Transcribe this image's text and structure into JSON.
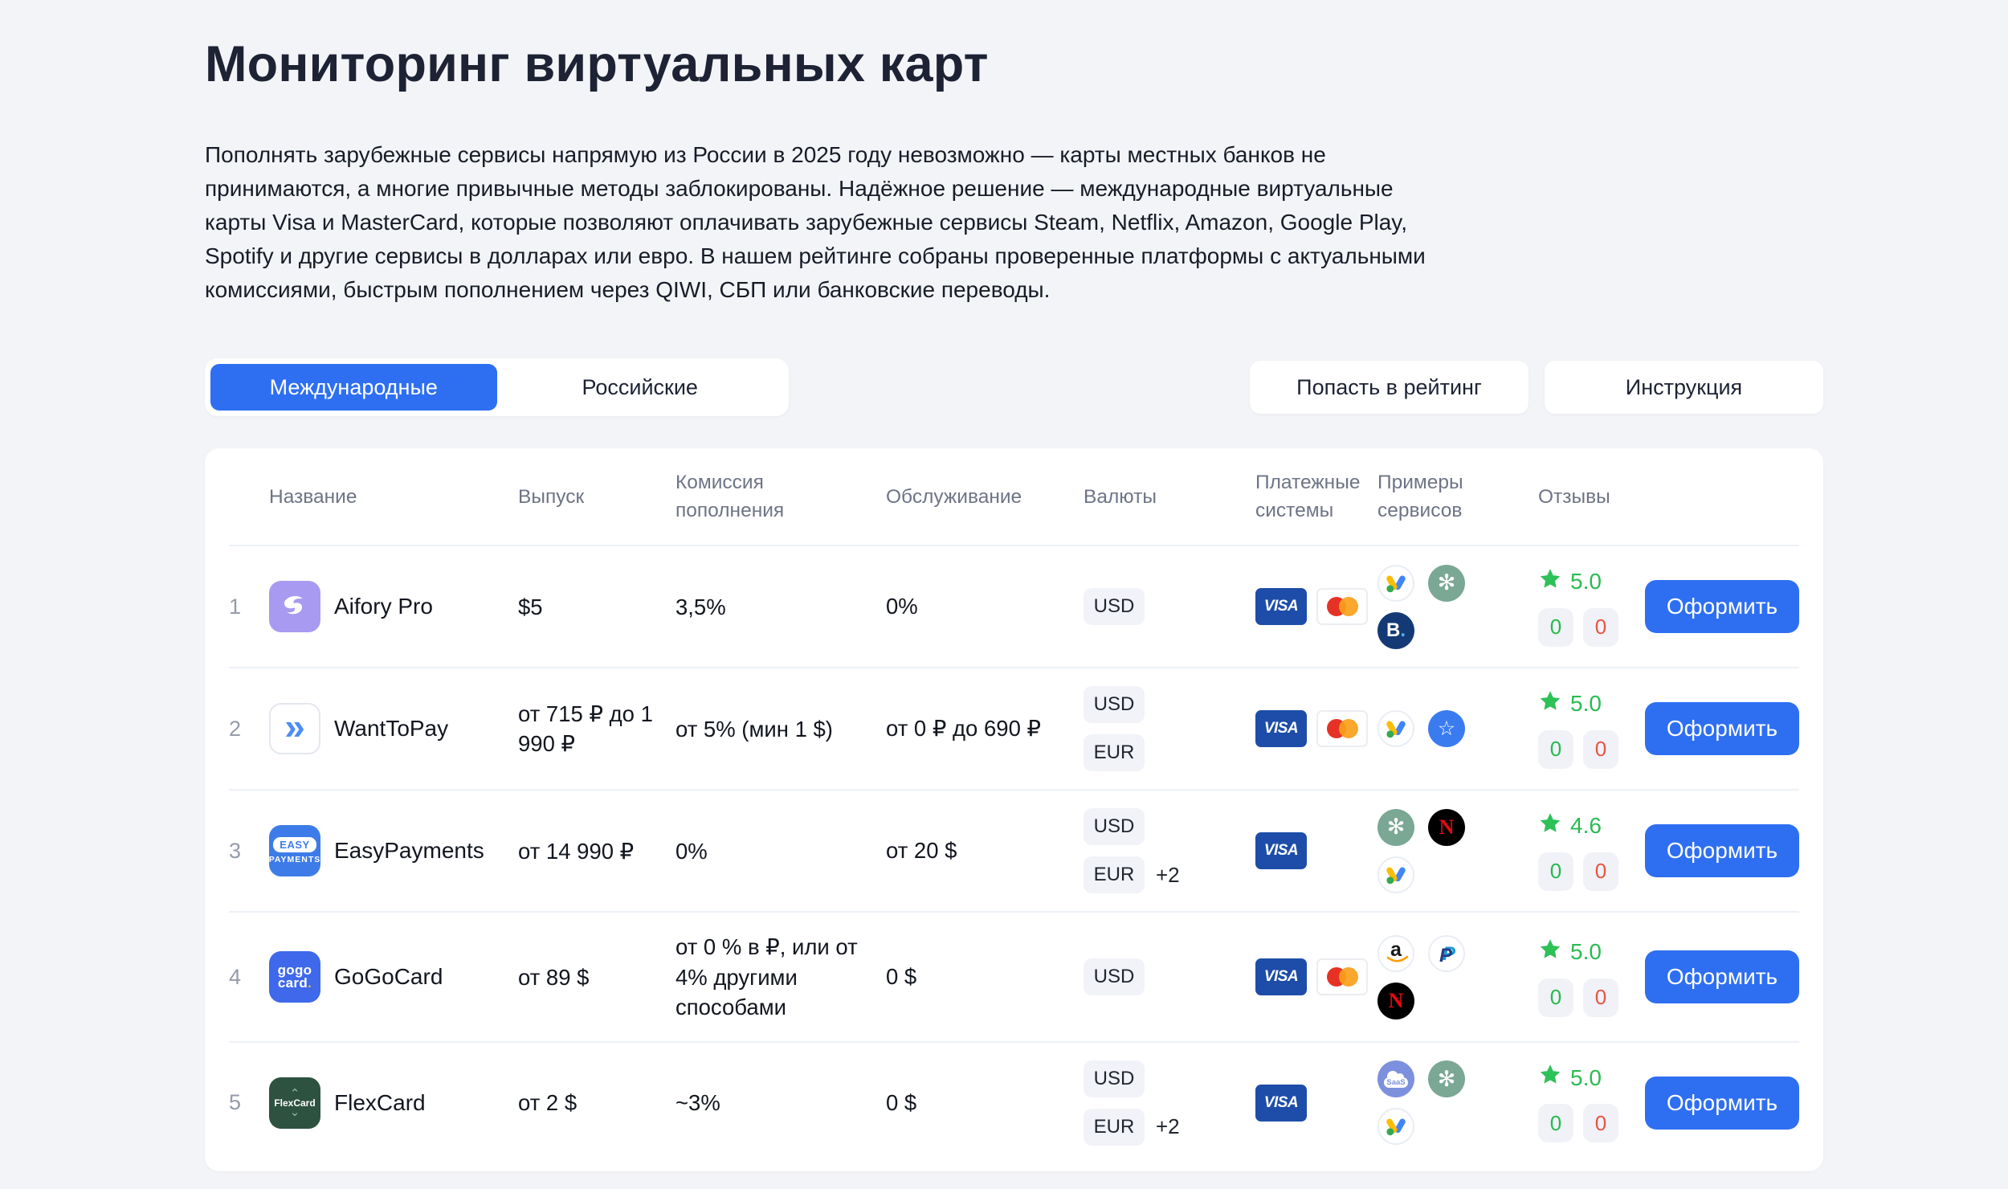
{
  "colors": {
    "accent_blue": "#2e6ff2",
    "rating_green": "#2abb52",
    "negative_red": "#e8543f",
    "visa_blue": "#1d4da8"
  },
  "page": {
    "title": "Мониторинг виртуальных карт",
    "description": "Пополнять зарубежные сервисы напрямую из России в 2025 году невозможно — карты местных банков не принимаются, а многие привычные методы заблокированы. Надёжное решение — международные виртуальные карты Visa и MasterCard, которые позволяют оплачивать зарубежные сервисы Steam, Netflix, Amazon, Google Play, Spotify и другие сервисы в долларах или евро. В нашем рейтинге собраны проверенные платформы с актуальными комиссиями, быстрым пополнением через QIWI, СБП или банковские переводы."
  },
  "tabs": [
    {
      "label": "Международные",
      "active": true
    },
    {
      "label": "Российские",
      "active": false
    }
  ],
  "actions": {
    "join_rating": "Попасть в рейтинг",
    "instruction": "Инструкция"
  },
  "icon_text": {
    "visa": "VISA",
    "booking_b": "B",
    "booking_dot": ".",
    "netflix_n": "N",
    "amazon_a": "a",
    "paypal_p": "P",
    "saas": "SaaS",
    "easy_line1": "EASY",
    "easy_line2": "PAYMENTS",
    "gogo_line1": "gogo",
    "gogo_line2": "card",
    "gogo_dot": ".",
    "flex_label": "FlexCard"
  },
  "table": {
    "headers": [
      "Название",
      "Выпуск",
      "Комиссия пополнения",
      "Обслуживание",
      "Валюты",
      "Платежные системы",
      "Примеры сервисов",
      "Отзывы"
    ],
    "rows": [
      {
        "rank": "1",
        "logo": "aifory",
        "name": "Aifory Pro",
        "issue": "$5",
        "topup_fee": "3,5%",
        "maintenance": "0%",
        "currencies": [
          "USD"
        ],
        "currencies_more": "",
        "payment_systems": [
          "visa",
          "mastercard"
        ],
        "services": [
          "google-ads",
          "openai",
          "booking"
        ],
        "rating": "5.0",
        "positive": "0",
        "negative": "0",
        "cta": "Оформить"
      },
      {
        "rank": "2",
        "logo": "wanttopay",
        "name": "WantToPay",
        "issue": "от 715 ₽ до 1 990 ₽",
        "topup_fee": "от 5% (мин 1 $)",
        "maintenance": "от 0 ₽ до 690 ₽",
        "currencies": [
          "USD",
          "EUR"
        ],
        "currencies_more": "",
        "payment_systems": [
          "visa",
          "mastercard"
        ],
        "services": [
          "google-ads",
          "star"
        ],
        "rating": "5.0",
        "positive": "0",
        "negative": "0",
        "cta": "Оформить"
      },
      {
        "rank": "3",
        "logo": "easypayments",
        "name": "EasyPayments",
        "issue": "от 14 990 ₽",
        "topup_fee": "0%",
        "maintenance": "от 20 $",
        "currencies": [
          "USD",
          "EUR"
        ],
        "currencies_more": "+2",
        "payment_systems": [
          "visa"
        ],
        "services": [
          "openai",
          "netflix",
          "google-ads"
        ],
        "rating": "4.6",
        "positive": "0",
        "negative": "0",
        "cta": "Оформить"
      },
      {
        "rank": "4",
        "logo": "gogocard",
        "name": "GoGoCard",
        "issue": "от 89 $",
        "topup_fee": "от 0 % в ₽, или от 4% другими способами",
        "maintenance": "0 $",
        "currencies": [
          "USD"
        ],
        "currencies_more": "",
        "payment_systems": [
          "visa",
          "mastercard"
        ],
        "services": [
          "amazon",
          "paypal",
          "netflix"
        ],
        "rating": "5.0",
        "positive": "0",
        "negative": "0",
        "cta": "Оформить"
      },
      {
        "rank": "5",
        "logo": "flexcard",
        "name": "FlexCard",
        "issue": "от 2 $",
        "topup_fee": "~3%",
        "maintenance": "0 $",
        "currencies": [
          "USD",
          "EUR"
        ],
        "currencies_more": "+2",
        "payment_systems": [
          "visa"
        ],
        "services": [
          "saas",
          "openai",
          "google-ads"
        ],
        "rating": "5.0",
        "positive": "0",
        "negative": "0",
        "cta": "Оформить"
      }
    ]
  }
}
